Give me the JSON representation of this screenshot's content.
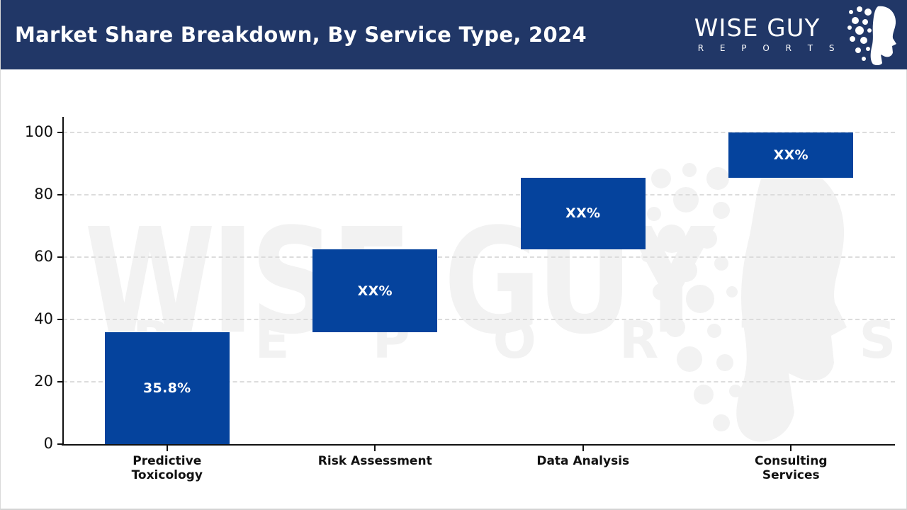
{
  "header": {
    "title": "Market Share Breakdown, By Service Type, 2024",
    "logo": {
      "wordmark": "WISE GUY",
      "subtext": "R E P O R T S"
    }
  },
  "watermark": {
    "wordmark": "WISE GUY",
    "subtext": "R E P O R T S"
  },
  "colors": {
    "header_bg": "#213767",
    "bar": "#05439d",
    "bar_label": "#ffffff",
    "axis": "#111111",
    "grid": "#dcdcdc",
    "watermark": "#f2f2f2"
  },
  "chart_data": {
    "type": "bar",
    "subtype": "waterfall",
    "title": "Market Share Breakdown, By Service Type, 2024",
    "xlabel": "",
    "ylabel": "",
    "ylim": [
      0,
      100
    ],
    "yticks": [
      0,
      20,
      40,
      60,
      80,
      100
    ],
    "grid": "horizontal-dashed",
    "legend": "none",
    "categories": [
      [
        "Predictive",
        "Toxicology"
      ],
      [
        "Risk Assessment"
      ],
      [
        "Data Analysis"
      ],
      [
        "Consulting",
        "Services"
      ]
    ],
    "segments": [
      {
        "category": "Predictive Toxicology",
        "start": 0,
        "end": 35.8,
        "label": "35.8%"
      },
      {
        "category": "Risk Assessment",
        "start": 35.8,
        "end": 62.5,
        "label": "XX%"
      },
      {
        "category": "Data Analysis",
        "start": 62.5,
        "end": 85.5,
        "label": "XX%"
      },
      {
        "category": "Consulting Services",
        "start": 85.5,
        "end": 100,
        "label": "XX%"
      }
    ]
  }
}
